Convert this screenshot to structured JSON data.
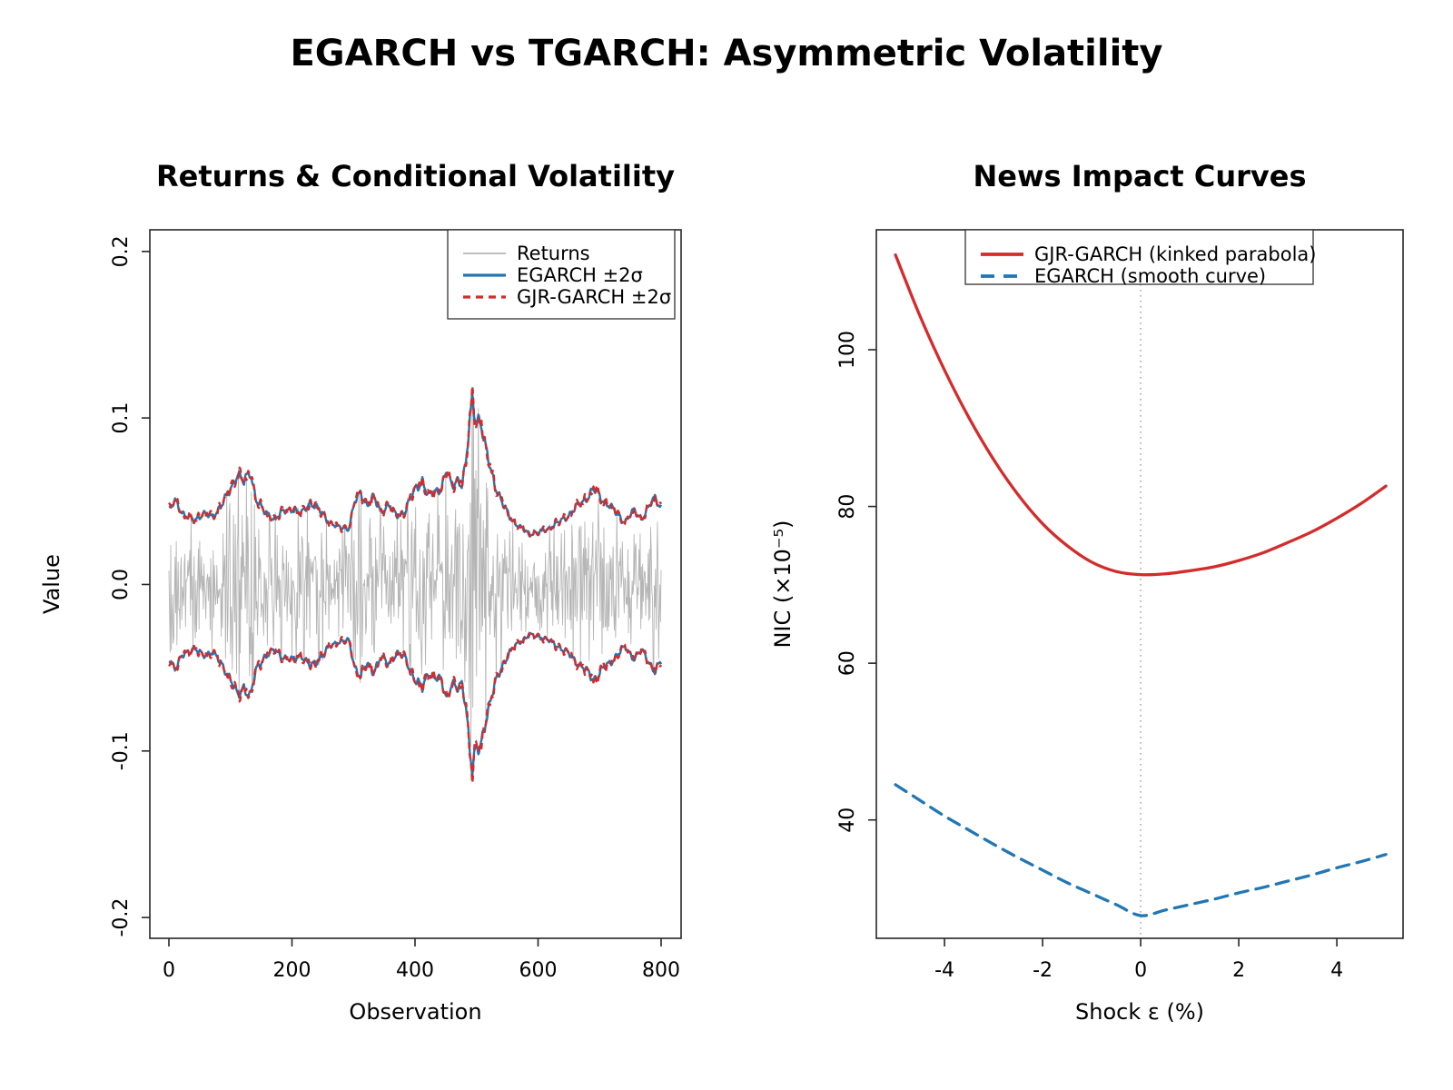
{
  "main_title": "EGARCH vs TGARCH: Asymmetric Volatility",
  "colors": {
    "returns_gray": "#b5b5b5",
    "egarch_blue": "#2077b4",
    "gjr_red": "#d42b2b",
    "axis": "#262626",
    "ref_line": "#999999",
    "background": "#ffffff",
    "text": "#000000"
  },
  "chart_data": [
    {
      "type": "line",
      "panel": "left",
      "title": "Returns & Conditional Volatility",
      "xlabel": "Observation",
      "ylabel": "Value",
      "xlim": [
        -31,
        832.5
      ],
      "ylim": [
        -0.2125,
        0.213
      ],
      "xticks": [
        0,
        200,
        400,
        600,
        800
      ],
      "xtick_labels": [
        "0",
        "200",
        "400",
        "600",
        "800"
      ],
      "yticks": [
        0.2,
        0.1,
        0.0,
        -0.1,
        -0.2
      ],
      "ytick_labels": [
        "0.2",
        "0.1",
        "0.0",
        "-0.1",
        "-0.2"
      ],
      "grid": false,
      "n_obs": 800,
      "legend": {
        "position": "top-right",
        "entries": [
          {
            "label": "Returns",
            "color_key": "returns_gray",
            "style": "solid",
            "width": 1.2
          },
          {
            "label": "EGARCH ±2σ",
            "color_key": "egarch_blue",
            "style": "solid",
            "width": 2.6
          },
          {
            "label": "GJR-GARCH ±2σ",
            "color_key": "gjr_red",
            "style": "dashed",
            "width": 2.6
          }
        ]
      },
      "series": [
        {
          "name": "Returns",
          "description": "zero-mean return noise with sd = envelope/2, n = 800"
        },
        {
          "name": "EGARCH ±2σ",
          "description": "symmetric ±2σ conditional-volatility band (upper and mirrored lower)"
        },
        {
          "name": "GJR-GARCH ±2σ",
          "description": "±2σ band nearly overlapping the EGARCH band"
        }
      ],
      "envelope_2sigma_keypoints": [
        [
          0,
          0.044
        ],
        [
          10,
          0.05
        ],
        [
          25,
          0.042
        ],
        [
          40,
          0.038
        ],
        [
          55,
          0.043
        ],
        [
          70,
          0.04
        ],
        [
          85,
          0.048
        ],
        [
          100,
          0.056
        ],
        [
          112,
          0.068
        ],
        [
          122,
          0.061
        ],
        [
          132,
          0.067
        ],
        [
          142,
          0.052
        ],
        [
          155,
          0.043
        ],
        [
          170,
          0.04
        ],
        [
          185,
          0.043
        ],
        [
          200,
          0.046
        ],
        [
          215,
          0.042
        ],
        [
          230,
          0.05
        ],
        [
          245,
          0.044
        ],
        [
          260,
          0.038
        ],
        [
          275,
          0.034
        ],
        [
          292,
          0.034
        ],
        [
          302,
          0.049
        ],
        [
          312,
          0.055
        ],
        [
          322,
          0.048
        ],
        [
          332,
          0.052
        ],
        [
          344,
          0.044
        ],
        [
          356,
          0.048
        ],
        [
          370,
          0.041
        ],
        [
          385,
          0.045
        ],
        [
          400,
          0.057
        ],
        [
          412,
          0.063
        ],
        [
          422,
          0.052
        ],
        [
          432,
          0.056
        ],
        [
          442,
          0.058
        ],
        [
          452,
          0.068
        ],
        [
          460,
          0.058
        ],
        [
          468,
          0.064
        ],
        [
          476,
          0.06
        ],
        [
          483,
          0.072
        ],
        [
          489,
          0.098
        ],
        [
          493,
          0.112
        ],
        [
          499,
          0.101
        ],
        [
          506,
          0.098
        ],
        [
          514,
          0.082
        ],
        [
          522,
          0.071
        ],
        [
          532,
          0.058
        ],
        [
          542,
          0.048
        ],
        [
          556,
          0.04
        ],
        [
          570,
          0.034
        ],
        [
          585,
          0.031
        ],
        [
          602,
          0.031
        ],
        [
          618,
          0.034
        ],
        [
          634,
          0.037
        ],
        [
          650,
          0.042
        ],
        [
          665,
          0.047
        ],
        [
          678,
          0.052
        ],
        [
          690,
          0.057
        ],
        [
          702,
          0.052
        ],
        [
          715,
          0.048
        ],
        [
          728,
          0.042
        ],
        [
          742,
          0.038
        ],
        [
          756,
          0.044
        ],
        [
          768,
          0.04
        ],
        [
          780,
          0.046
        ],
        [
          790,
          0.052
        ],
        [
          800,
          0.047
        ]
      ]
    },
    {
      "type": "line",
      "panel": "right",
      "title": "News Impact Curves",
      "xlabel": "Shock ε (%)",
      "ylabel": "NIC (×10⁻⁵)",
      "xlim": [
        -5.39,
        5.35
      ],
      "ylim": [
        24.9,
        115.3
      ],
      "xticks": [
        -4,
        -2,
        0,
        2,
        4
      ],
      "xtick_labels": [
        "-4",
        "-2",
        "0",
        "2",
        "4"
      ],
      "yticks": [
        40,
        60,
        80,
        100
      ],
      "ytick_labels": [
        "40",
        "60",
        "80",
        "100"
      ],
      "grid": false,
      "ref_vline_x": 0,
      "legend": {
        "position": "top-center",
        "entries": [
          {
            "label": "GJR-GARCH (kinked parabola)",
            "color_key": "gjr_red",
            "style": "solid",
            "width": 3.2
          },
          {
            "label": "EGARCH (smooth curve)",
            "color_key": "egarch_blue",
            "style": "dashed",
            "width": 3.2
          }
        ]
      },
      "series": [
        {
          "name": "GJR-GARCH (kinked parabola)",
          "x": [
            -5,
            -4.5,
            -4,
            -3.5,
            -3,
            -2.5,
            -2,
            -1.5,
            -1,
            -0.5,
            0,
            0.5,
            1,
            1.5,
            2,
            2.5,
            3,
            3.5,
            4,
            4.5,
            5
          ],
          "y": [
            112.1,
            104.3,
            97.4,
            91.3,
            86.0,
            81.5,
            77.8,
            75.0,
            72.9,
            71.7,
            71.3,
            71.4,
            71.8,
            72.3,
            73.1,
            74.1,
            75.4,
            76.8,
            78.5,
            80.4,
            82.6
          ]
        },
        {
          "name": "EGARCH (smooth curve)",
          "x": [
            -5,
            -4.5,
            -4,
            -3.5,
            -3,
            -2.5,
            -2,
            -1.5,
            -1,
            -0.5,
            0,
            0.5,
            1,
            1.5,
            2,
            2.5,
            3,
            3.5,
            4,
            4.5,
            5
          ],
          "y": [
            44.5,
            42.5,
            40.5,
            38.7,
            36.9,
            35.2,
            33.6,
            32.0,
            30.6,
            29.2,
            27.8,
            28.5,
            29.2,
            29.9,
            30.7,
            31.4,
            32.2,
            33.0,
            33.9,
            34.7,
            35.6
          ]
        }
      ]
    }
  ]
}
